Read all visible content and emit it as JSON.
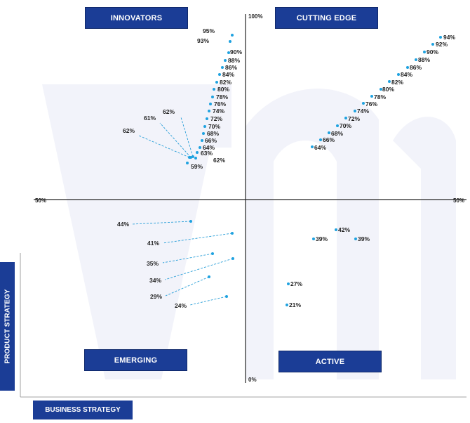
{
  "quadrants": {
    "top_left": "INNOVATORS",
    "top_right": "CUTTING EDGE",
    "bottom_left": "EMERGING",
    "bottom_right": "ACTIVE"
  },
  "axes": {
    "y_axis_title": "PRODUCT STRATEGY",
    "x_axis_title": "BUSINESS STRATEGY",
    "y_top": "100%",
    "y_bottom": "0%",
    "x_left": "50%",
    "x_right": "50%"
  },
  "colors": {
    "accent": "#1b3d96",
    "marker": "#1fa2e0",
    "line": "#2a9fd8",
    "watermark": "#f1f2f9"
  },
  "chart_data": {
    "type": "scatter",
    "title": "",
    "xlabel": "BUSINESS STRATEGY",
    "ylabel": "PRODUCT STRATEGY",
    "series": [
      {
        "name": "",
        "points_note_free": true,
        "points": [
          {
            "label": "95%",
            "x": 0.13,
            "y": 95
          },
          {
            "label": "93%",
            "x": 0.13,
            "y": 93
          },
          {
            "label": "90%",
            "x": 0.11,
            "y": 90
          },
          {
            "label": "88%",
            "x": 0.1,
            "y": 88
          },
          {
            "label": "86%",
            "x": 0.09,
            "y": 86
          },
          {
            "label": "84%",
            "x": 0.08,
            "y": 84
          },
          {
            "label": "82%",
            "x": 0.07,
            "y": 82
          },
          {
            "label": "80%",
            "x": 0.06,
            "y": 80
          },
          {
            "label": "78%",
            "x": 0.055,
            "y": 78
          },
          {
            "label": "76%",
            "x": 0.05,
            "y": 76
          },
          {
            "label": "74%",
            "x": 0.04,
            "y": 74
          },
          {
            "label": "72%",
            "x": 0.035,
            "y": 72
          },
          {
            "label": "70%",
            "x": 0.03,
            "y": 70
          },
          {
            "label": "68%",
            "x": 0.02,
            "y": 68
          },
          {
            "label": "66%",
            "x": 0.015,
            "y": 66
          },
          {
            "label": "64%",
            "x": 0.01,
            "y": 64
          },
          {
            "label": "63%",
            "x": 0.005,
            "y": 63
          },
          {
            "label": "62%",
            "x": 0.0,
            "y": 62
          },
          {
            "label": "62%",
            "x": -0.01,
            "y": 62
          },
          {
            "label": "61%",
            "x": -0.02,
            "y": 61
          },
          {
            "label": "62%",
            "x": -0.02,
            "y": 62
          },
          {
            "label": "59%",
            "x": -0.03,
            "y": 59
          },
          {
            "label": "94%",
            "x": 0.95,
            "y": 94
          },
          {
            "label": "92%",
            "x": 0.93,
            "y": 92
          },
          {
            "label": "90%",
            "x": 0.9,
            "y": 90
          },
          {
            "label": "88%",
            "x": 0.88,
            "y": 88
          },
          {
            "label": "86%",
            "x": 0.85,
            "y": 86
          },
          {
            "label": "84%",
            "x": 0.82,
            "y": 84
          },
          {
            "label": "82%",
            "x": 0.79,
            "y": 82
          },
          {
            "label": "80%",
            "x": 0.76,
            "y": 80
          },
          {
            "label": "78%",
            "x": 0.73,
            "y": 78
          },
          {
            "label": "76%",
            "x": 0.7,
            "y": 76
          },
          {
            "label": "74%",
            "x": 0.67,
            "y": 74
          },
          {
            "label": "72%",
            "x": 0.64,
            "y": 72
          },
          {
            "label": "70%",
            "x": 0.61,
            "y": 70
          },
          {
            "label": "68%",
            "x": 0.58,
            "y": 68
          },
          {
            "label": "66%",
            "x": 0.55,
            "y": 66
          },
          {
            "label": "64%",
            "x": 0.52,
            "y": 64
          },
          {
            "label": "44%",
            "x": -0.25,
            "y": 44
          },
          {
            "label": "41%",
            "x": -0.05,
            "y": 41
          },
          {
            "label": "35%",
            "x": -0.15,
            "y": 35
          },
          {
            "label": "34%",
            "x": -0.05,
            "y": 34
          },
          {
            "label": "29%",
            "x": -0.17,
            "y": 29
          },
          {
            "label": "24%",
            "x": -0.09,
            "y": 24
          },
          {
            "label": "42%",
            "x": 0.42,
            "y": 42
          },
          {
            "label": "39%",
            "x": 0.33,
            "y": 39
          },
          {
            "label": "39%",
            "x": 0.55,
            "y": 39
          },
          {
            "label": "27%",
            "x": 0.21,
            "y": 27
          },
          {
            "label": "21%",
            "x": 0.21,
            "y": 21
          }
        ]
      }
    ],
    "grid": false,
    "legend": "none"
  }
}
